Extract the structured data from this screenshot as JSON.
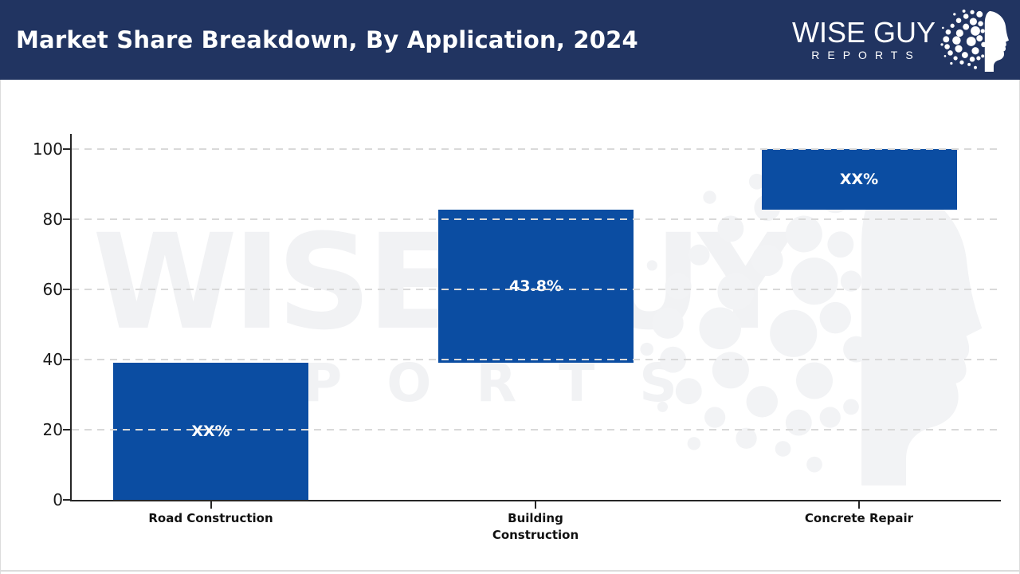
{
  "header": {
    "title": "Market Share Breakdown, By Application, 2024",
    "bg_color": "#213461",
    "brand": {
      "line1": "WISE GUY",
      "line2": "REPORTS"
    }
  },
  "watermark": {
    "line1": "WISE GUY",
    "line2": "REPORTS"
  },
  "chart_data": {
    "type": "bar",
    "subtype": "waterfall",
    "title": "Market Share Breakdown, By Application, 2024",
    "categories": [
      "Road Construction",
      "Building\nConstruction",
      "Concrete Repair"
    ],
    "segments": [
      {
        "category": "Road Construction",
        "start": 0,
        "end": 39.0,
        "value": 39.0,
        "label": "XX%"
      },
      {
        "category": "Building Construction",
        "start": 39.0,
        "end": 82.8,
        "value": 43.8,
        "label": "43.8%"
      },
      {
        "category": "Concrete Repair",
        "start": 82.8,
        "end": 100,
        "value": 17.2,
        "label": "XX%"
      }
    ],
    "yticks": [
      0,
      20,
      40,
      60,
      80,
      100
    ],
    "ylim": [
      0,
      105
    ],
    "grid": "horizontal-dashed",
    "grid_color": "#d9d9d9",
    "bar_color": "#0b4da2",
    "label_color": "#ffffff",
    "axis_color": "#262626",
    "legend": "none"
  }
}
